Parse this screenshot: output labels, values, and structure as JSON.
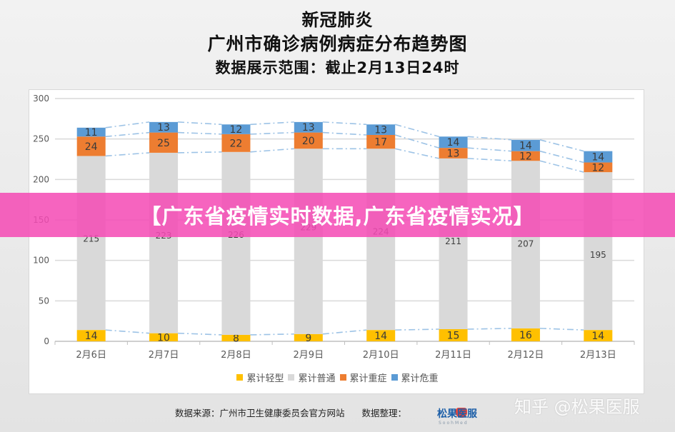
{
  "header": {
    "line1": "新冠肺炎",
    "line2": "广州市确诊病例病症分布趋势图",
    "line3": "数据展示范围：截止2月13日24时"
  },
  "banner": {
    "text": "【广东省疫情实时数据,广东省疫情实况】"
  },
  "footer": {
    "source": "数据来源：广州市卫生健康委员会官方网站",
    "organizer_label": "数据整理：",
    "logo_text": "松果医服",
    "logo_sub": "SoohMed"
  },
  "watermark": "知乎 @松果医服",
  "chart_data": {
    "type": "bar",
    "stacked": true,
    "title": "广州市确诊病例病症分布趋势图",
    "xlabel": "",
    "ylabel": "",
    "ylim": [
      0,
      300
    ],
    "yticks": [
      0,
      50,
      100,
      150,
      200,
      250,
      300
    ],
    "grid": true,
    "legend_position": "bottom",
    "categories": [
      "2月6日",
      "2月7日",
      "2月8日",
      "2月9日",
      "2月10日",
      "2月11日",
      "2月12日",
      "2月13日"
    ],
    "series": [
      {
        "name": "累计轻型",
        "color": "#ffc000",
        "values": [
          14,
          10,
          8,
          9,
          14,
          15,
          16,
          14
        ]
      },
      {
        "name": "累计普通",
        "color": "#d9d9d9",
        "values": [
          215,
          223,
          226,
          229,
          224,
          211,
          207,
          195
        ]
      },
      {
        "name": "累计重症",
        "color": "#ed7d31",
        "values": [
          24,
          25,
          22,
          20,
          17,
          13,
          12,
          12
        ]
      },
      {
        "name": "累计危重",
        "color": "#5b9bd5",
        "values": [
          11,
          13,
          12,
          13,
          13,
          14,
          14,
          14
        ]
      }
    ],
    "connector_color": "#9dc3e6"
  }
}
